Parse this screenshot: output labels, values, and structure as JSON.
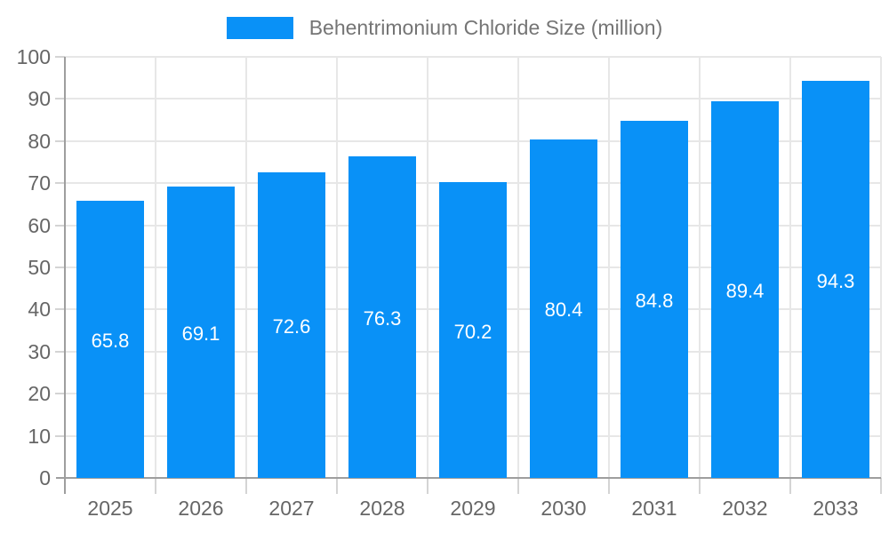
{
  "legend": {
    "label": "Behentrimonium Chloride Size (million)"
  },
  "chart_data": {
    "type": "bar",
    "title": "",
    "xlabel": "",
    "ylabel": "",
    "categories": [
      "2025",
      "2026",
      "2027",
      "2028",
      "2029",
      "2030",
      "2031",
      "2032",
      "2033"
    ],
    "series": [
      {
        "name": "Behentrimonium Chloride Size (million)",
        "values": [
          65.8,
          69.1,
          72.6,
          76.3,
          70.2,
          80.4,
          84.8,
          89.4,
          94.3
        ]
      }
    ],
    "bar_value_labels": [
      "65.8",
      "69.1",
      "72.6",
      "76.3",
      "70.2",
      "80.4",
      "84.8",
      "89.4",
      "94.3"
    ],
    "ylim": [
      0,
      100
    ],
    "ytick_step": 10,
    "grid": true,
    "legend_position": "top"
  },
  "colors": {
    "bar": "#0991f7",
    "grid": "#e7e7e7",
    "axis": "#9e9e9e",
    "tick": "#d4d4d4",
    "axis_label": "#666666",
    "legend_text": "#757575",
    "bar_label_text": "#ffffff",
    "background": "#ffffff"
  }
}
